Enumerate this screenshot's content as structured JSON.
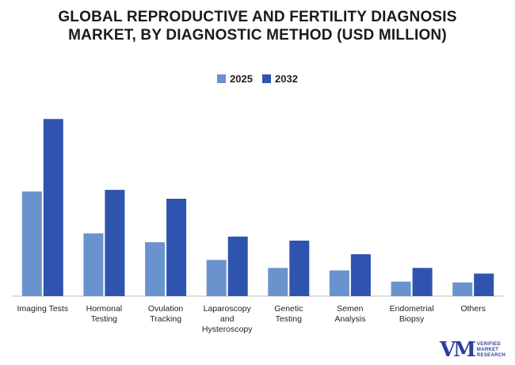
{
  "chart_data": {
    "type": "bar",
    "title_lines": [
      "GLOBAL REPRODUCTIVE AND FERTILITY DIAGNOSIS",
      "MARKET, BY DIAGNOSTIC METHOD (USD MILLION)"
    ],
    "categories": [
      [
        "Imaging Tests"
      ],
      [
        "Hormonal",
        "Testing"
      ],
      [
        "Ovulation",
        "Tracking"
      ],
      [
        "Laparoscopy",
        "and",
        "Hysteroscopy"
      ],
      [
        "Genetic",
        "Testing"
      ],
      [
        "Semen",
        "Analysis"
      ],
      [
        "Endometrial",
        "Biopsy"
      ],
      [
        "Others"
      ]
    ],
    "series": [
      {
        "name": "2025",
        "color": "#6a93cd",
        "values": [
          130,
          78,
          67,
          45,
          35,
          32,
          18,
          17
        ]
      },
      {
        "name": "2032",
        "color": "#2e54b0",
        "values": [
          220,
          132,
          121,
          74,
          69,
          52,
          35,
          28
        ]
      }
    ],
    "ylim": [
      0,
      240
    ],
    "xlabel": "",
    "ylabel": "",
    "grid": false,
    "legend_position": "top-center"
  },
  "branding": {
    "logo_mark": "VM",
    "logo_lines": [
      "VERIFIED",
      "MARKET",
      "RESEARCH"
    ]
  }
}
